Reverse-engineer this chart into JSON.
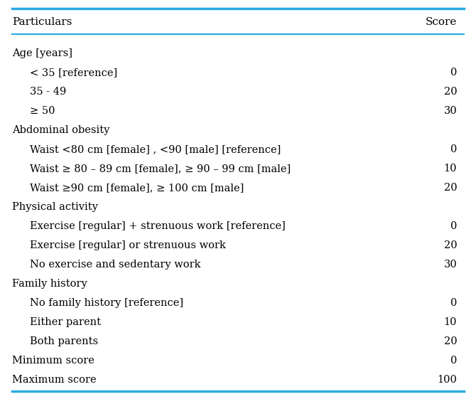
{
  "header": [
    "Particulars",
    "Score"
  ],
  "rows": [
    {
      "text": "Age [years]",
      "score": "",
      "indent": 0
    },
    {
      "text": "< 35 [reference]",
      "score": "0",
      "indent": 1
    },
    {
      "text": "35 - 49",
      "score": "20",
      "indent": 1
    },
    {
      "text": "≥ 50",
      "score": "30",
      "indent": 1
    },
    {
      "text": "Abdominal obesity",
      "score": "",
      "indent": 0
    },
    {
      "text": "Waist <80 cm [female] , <90 [male] [reference]",
      "score": "0",
      "indent": 1
    },
    {
      "text": "Waist ≥ 80 – 89 cm [female], ≥ 90 – 99 cm [male]",
      "score": "10",
      "indent": 1
    },
    {
      "text": "Waist ≥90 cm [female], ≥ 100 cm [male]",
      "score": "20",
      "indent": 1
    },
    {
      "text": "Physical activity",
      "score": "",
      "indent": 0
    },
    {
      "text": "Exercise [regular] + strenuous work [reference]",
      "score": "0",
      "indent": 1
    },
    {
      "text": "Exercise [regular] or strenuous work",
      "score": "20",
      "indent": 1
    },
    {
      "text": "No exercise and sedentary work",
      "score": "30",
      "indent": 1
    },
    {
      "text": "Family history",
      "score": "",
      "indent": 0
    },
    {
      "text": "No family history [reference]",
      "score": "0",
      "indent": 1
    },
    {
      "text": "Either parent",
      "score": "10",
      "indent": 1
    },
    {
      "text": "Both parents",
      "score": "20",
      "indent": 1
    },
    {
      "text": "Minimum score",
      "score": "0",
      "indent": 0
    },
    {
      "text": "Maximum score",
      "score": "100",
      "indent": 0
    }
  ],
  "top_line_color": "#29ABE2",
  "header_line_color": "#29ABE2",
  "bottom_line_color": "#29ABE2",
  "bg_color": "#ffffff",
  "text_color": "#000000",
  "header_fontsize": 11.0,
  "body_fontsize": 10.5,
  "figsize": [
    6.7,
    5.68
  ],
  "dpi": 100
}
